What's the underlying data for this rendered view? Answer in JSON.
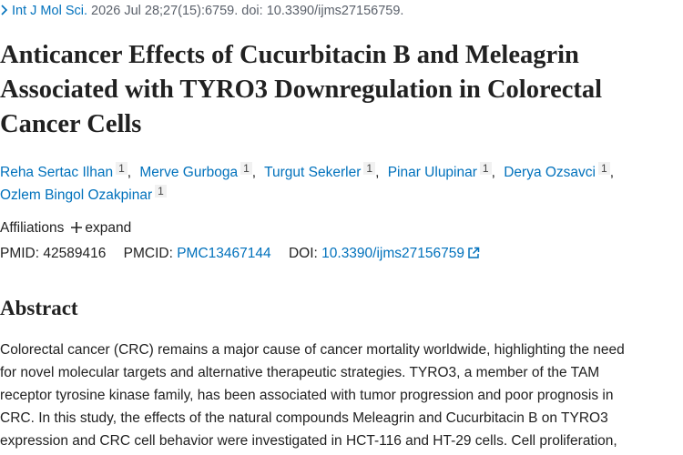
{
  "header": {
    "journal": "Int J Mol Sci.",
    "citation": "2026 Jul 28;27(15):6759. doi: 10.3390/ijms27156759."
  },
  "title_lines": [
    "Anticancer Effects of Cucurbitacin B and Meleagrin",
    "Associated with TYRO3 Downregulation in Colorectal",
    "Cancer Cells"
  ],
  "author_separator": ",",
  "authors": [
    {
      "name": "Reha Sertac Ilhan",
      "affiliation": "1"
    },
    {
      "name": "Merve Gurboga",
      "affiliation": "1"
    },
    {
      "name": "Turgut Sekerler",
      "affiliation": "1"
    },
    {
      "name": "Pinar Ulupinar",
      "affiliation": "1"
    },
    {
      "name": "Derya Ozsavci",
      "affiliation": "1"
    },
    {
      "name": "Ozlem Bingol Ozakpinar",
      "affiliation": "1"
    }
  ],
  "affiliations": {
    "label": "Affiliations",
    "toggle": "expand"
  },
  "identifiers": {
    "pmid_label": "PMID:",
    "pmid": "42589416",
    "pmcid_label": "PMCID:",
    "pmcid": "PMC13467144",
    "doi_label": "DOI:",
    "doi": "10.3390/ijms27156759"
  },
  "abstract": {
    "heading": "Abstract",
    "lines": [
      "Colorectal cancer (CRC) remains a major cause of cancer mortality worldwide, highlighting the need",
      "for novel molecular targets and alternative therapeutic strategies. TYRO3, a member of the TAM",
      "receptor tyrosine kinase family, has been associated with tumor progression and poor prognosis in",
      "CRC. In this study, the effects of the natural compounds Meleagrin and Cucurbitacin B on TYRO3",
      "expression and CRC cell behavior were investigated in HCT-116 and HT-29 cells. Cell proliferation,"
    ]
  }
}
